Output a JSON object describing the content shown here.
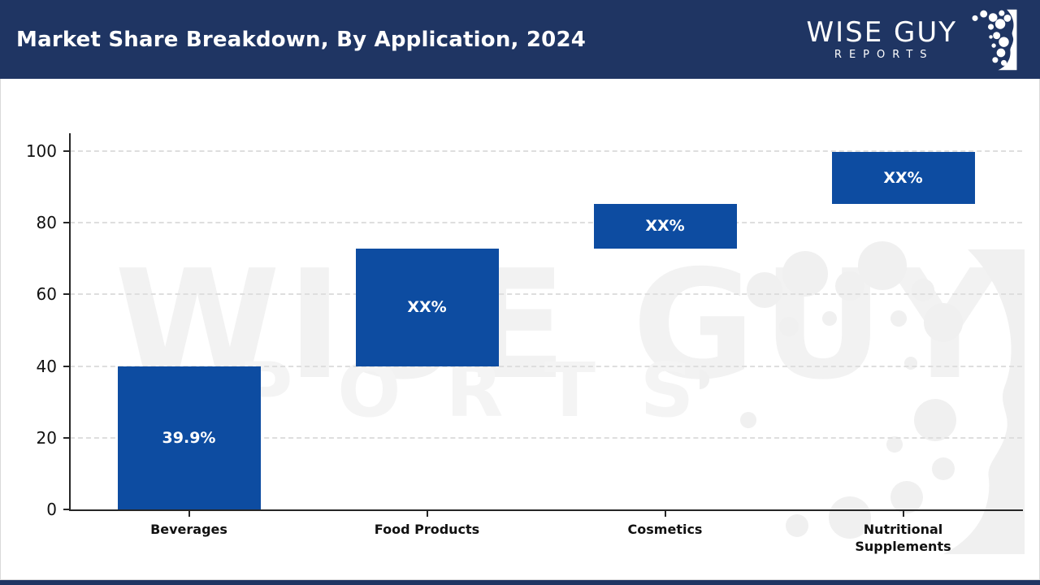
{
  "header": {
    "title": "Market Share Breakdown, By Application, 2024",
    "logo": {
      "line1": "WISE GUY",
      "line2": "REPORTS"
    }
  },
  "watermark": {
    "line1": "WISE GUY",
    "line2": "PORTS"
  },
  "chart_data": {
    "type": "bar",
    "subtype": "waterfall",
    "title": "Market Share Breakdown, By Application, 2024",
    "categories": [
      "Beverages",
      "Food Products",
      "Cosmetics",
      "Nutritional Supplements"
    ],
    "series": [
      {
        "name": "Market Share",
        "segments": [
          {
            "category": "Beverages",
            "from": 0,
            "to": 39.9,
            "label": "39.9%"
          },
          {
            "category": "Food Products",
            "from": 39.9,
            "to": 72.8,
            "label": "XX%"
          },
          {
            "category": "Cosmetics",
            "from": 72.8,
            "to": 85.3,
            "label": "XX%"
          },
          {
            "category": "Nutritional Supplements",
            "from": 85.3,
            "to": 99.8,
            "label": "XX%"
          }
        ]
      }
    ],
    "xlabel": "",
    "ylabel": "",
    "ylim": [
      0,
      100
    ],
    "yticks": [
      0,
      20,
      40,
      60,
      80,
      100
    ],
    "grid": "horizontal-dashed",
    "legend": "none",
    "bar_color": "#0d4ca1",
    "bar_label_color": "#ffffff"
  },
  "colors": {
    "header_bg": "#1f3563",
    "footer_bg": "#1f3563",
    "axis": "#262626",
    "gridline": "#dedede",
    "watermark": "#f2f2f2"
  }
}
